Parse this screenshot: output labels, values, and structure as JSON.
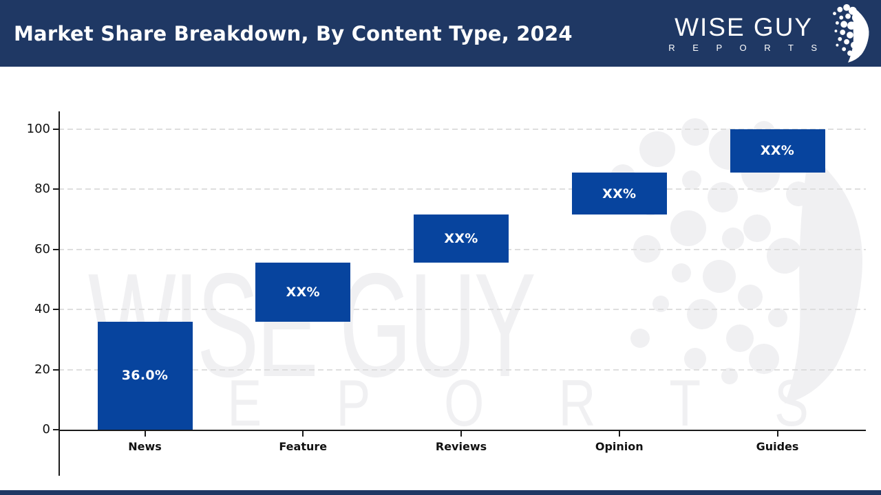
{
  "header": {
    "title": "Market Share Breakdown, By Content Type, 2024",
    "logo": {
      "wordmark": "WISE GUY",
      "subtitle": "R E P O R T S"
    }
  },
  "watermark": {
    "wordmark": "WISE GUY",
    "subtitle": "R E P O R T S"
  },
  "colors": {
    "header_bg": "#1f3864",
    "footer_bg": "#1f3864",
    "bar_fill": "#07449e",
    "bar_label": "#ffffff",
    "grid_line": "#dedede",
    "axis_line": "#1a1a1a",
    "tick_label": "#111111",
    "watermark": "#f0f0f2"
  },
  "chart_data": {
    "type": "bar",
    "subtype": "waterfall-step",
    "title": "Market Share Breakdown, By Content Type, 2024",
    "categories": [
      "News",
      "Feature",
      "Reviews",
      "Opinion",
      "Guides"
    ],
    "series": [
      {
        "name": "Market share (%)",
        "segments": [
          {
            "category": "News",
            "start": 0,
            "end": 36,
            "label": "36.0%"
          },
          {
            "category": "Feature",
            "start": 36,
            "end": 55.5,
            "label": "XX%"
          },
          {
            "category": "Reviews",
            "start": 55.5,
            "end": 71.5,
            "label": "XX%"
          },
          {
            "category": "Opinion",
            "start": 71.5,
            "end": 85.5,
            "label": "XX%"
          },
          {
            "category": "Guides",
            "start": 85.5,
            "end": 100,
            "label": "XX%"
          }
        ]
      }
    ],
    "xlabel": "",
    "ylabel": "",
    "ylim": [
      0,
      105
    ],
    "yticks": [
      0,
      20,
      40,
      60,
      80,
      100
    ],
    "grid": "horizontal-dashed",
    "legend": "none"
  }
}
